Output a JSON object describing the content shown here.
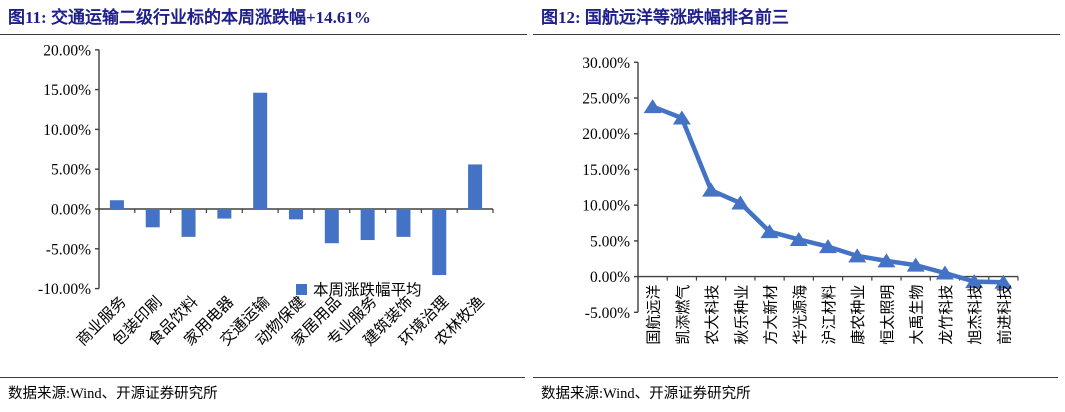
{
  "figures": [
    {
      "title": "图11:  交通运输二级行业标的本周涨跌幅+14.61%",
      "source": "数据来源:Wind、开源证券研究所"
    },
    {
      "title": "图12:  国航远洋等涨跌幅排名前三",
      "source": "数据来源:Wind、开源证券研究所"
    }
  ],
  "colors": {
    "series_blue": "#4472C4",
    "title_navy": "#1E1E8C",
    "axis_gray": "#404040",
    "text_black": "#000000"
  },
  "chart_data": [
    {
      "type": "bar",
      "title": "交通运输二级行业标的本周涨跌幅+14.61%",
      "categories": [
        "商业服务",
        "包装印刷",
        "食品饮料",
        "家用电器",
        "交通运输",
        "动物保健",
        "家居用品",
        "专业服务",
        "建筑装饰",
        "环境治理",
        "农林牧渔"
      ],
      "values": [
        1.1,
        -2.3,
        -3.5,
        -1.2,
        14.61,
        -1.3,
        -4.3,
        -3.9,
        -3.5,
        -8.3,
        5.6
      ],
      "legend": [
        "本周涨跌幅平均"
      ],
      "legend_position": "inside-bottom-right",
      "xlabel": "",
      "ylabel": "",
      "ylim": [
        -10,
        20
      ],
      "ytick_step": 5,
      "ytick_labels": [
        "20.00%",
        "15.00%",
        "10.00%",
        "5.00%",
        "0.00%",
        "-5.00%",
        "-10.00%"
      ],
      "grid": false,
      "bar_color": "#4472C4"
    },
    {
      "type": "line",
      "title": "国航远洋等涨跌幅排名前三",
      "categories": [
        "国航远洋",
        "凯添燃气",
        "农大科技",
        "秋乐种业",
        "方大新材",
        "华光源海",
        "沪江材料",
        "康农种业",
        "恒太照明",
        "大禹生物",
        "龙竹科技",
        "旭杰科技",
        "前进科技"
      ],
      "values": [
        23.8,
        22.2,
        12.1,
        10.3,
        6.3,
        5.2,
        4.2,
        2.9,
        2.2,
        1.6,
        0.5,
        -0.7,
        -0.8
      ],
      "marker": "triangle",
      "xlabel": "",
      "ylabel": "",
      "ylim": [
        -5,
        30
      ],
      "ytick_step": 5,
      "ytick_labels": [
        "30.00%",
        "25.00%",
        "20.00%",
        "15.00%",
        "10.00%",
        "5.00%",
        "0.00%",
        "-5.00%"
      ],
      "grid": false,
      "line_color": "#4472C4"
    }
  ]
}
